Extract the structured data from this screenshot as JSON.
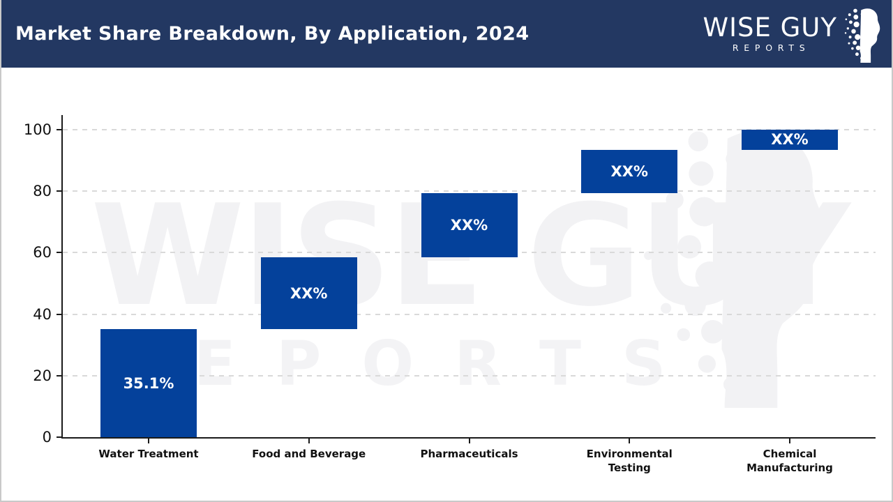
{
  "header": {
    "title": "Market Share Breakdown, By Application, 2024",
    "logo": {
      "line1": "WISE GUY",
      "line2": "REPORTS"
    }
  },
  "watermark": {
    "line1": "WISE GUY",
    "line2": "REPORTS"
  },
  "chart_data": {
    "type": "bar",
    "subtype": "waterfall",
    "title": "Market Share Breakdown, By Application, 2024",
    "categories": [
      "Water Treatment",
      "Food and Beverage",
      "Pharmaceuticals",
      "Environmental Testing",
      "Chemical Manufacturing"
    ],
    "category_label_lines": [
      [
        "Water Treatment"
      ],
      [
        "Food and Beverage"
      ],
      [
        "Pharmaceuticals"
      ],
      [
        "Environmental",
        "Testing"
      ],
      [
        "Chemical",
        "Manufacturing"
      ]
    ],
    "series": [
      {
        "name": "Market Share (%)",
        "segments": [
          {
            "category": "Water Treatment",
            "start": 0,
            "end": 35.1,
            "label": "35.1%"
          },
          {
            "category": "Food and Beverage",
            "start": 35.1,
            "end": 58.5,
            "label": "XX%"
          },
          {
            "category": "Pharmaceuticals",
            "start": 58.5,
            "end": 79.4,
            "label": "XX%"
          },
          {
            "category": "Environmental Testing",
            "start": 79.4,
            "end": 93.5,
            "label": "XX%"
          },
          {
            "category": "Chemical Manufacturing",
            "start": 93.5,
            "end": 100,
            "label": "XX%"
          }
        ]
      }
    ],
    "ylim": [
      0,
      100
    ],
    "yticks": [
      0,
      20,
      40,
      60,
      80,
      100
    ],
    "grid": "horizontal-dashed",
    "legend": "none",
    "colors": {
      "bar": "#04419b",
      "bar_label": "#ffffff",
      "axis": "#1a1a1a",
      "gridline": "#d9d9d9",
      "header": "#233862",
      "watermark": "#f2f2f4"
    }
  }
}
